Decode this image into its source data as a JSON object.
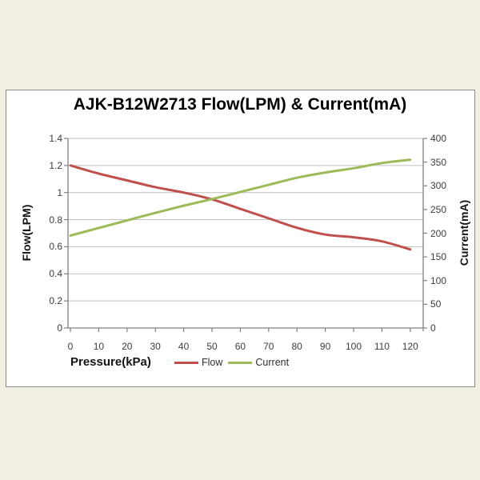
{
  "window": {
    "background_color": "#F0EFE1",
    "panel_color": "#FFFFFF",
    "panel_border_color": "#8A8A8A"
  },
  "chart_data": {
    "type": "line",
    "title": "AJK-B12W2713 Flow(LPM) & Current(mA)",
    "xlabel": "Pressure(kPa)",
    "ylabel_left": "Flow(LPM)",
    "ylabel_right": "Current(mA)",
    "x": [
      0,
      10,
      20,
      30,
      40,
      50,
      60,
      70,
      80,
      90,
      100,
      110,
      120
    ],
    "series": [
      {
        "name": "Flow",
        "axis": "left",
        "color": "#C0504D",
        "values": [
          1.2,
          1.14,
          1.09,
          1.04,
          1.0,
          0.95,
          0.88,
          0.81,
          0.74,
          0.69,
          0.67,
          0.64,
          0.58
        ]
      },
      {
        "name": "Current",
        "axis": "right",
        "color": "#9BBB59",
        "values": [
          195,
          211,
          227,
          243,
          258,
          272,
          287,
          302,
          317,
          328,
          337,
          348,
          355
        ]
      }
    ],
    "ylim_left": [
      0,
      1.4
    ],
    "ylim_right": [
      0,
      400
    ],
    "y_left_ticks": [
      "1.4",
      "1.2",
      "1",
      "0.8",
      "0.6",
      "0.4",
      "0.2",
      "0"
    ],
    "y_right_ticks": [
      "400",
      "350",
      "300",
      "250",
      "200",
      "150",
      "100",
      "50",
      "0"
    ],
    "x_ticks": [
      "0",
      "10",
      "20",
      "30",
      "40",
      "50",
      "60",
      "70",
      "80",
      "90",
      "100",
      "110",
      "120"
    ],
    "grid": true,
    "grid_color": "#BFBFBF",
    "axis_color": "#808080",
    "tick_text_color": "#3D3D3D",
    "legend_position": "bottom",
    "legend": [
      "Flow",
      "Current"
    ]
  }
}
